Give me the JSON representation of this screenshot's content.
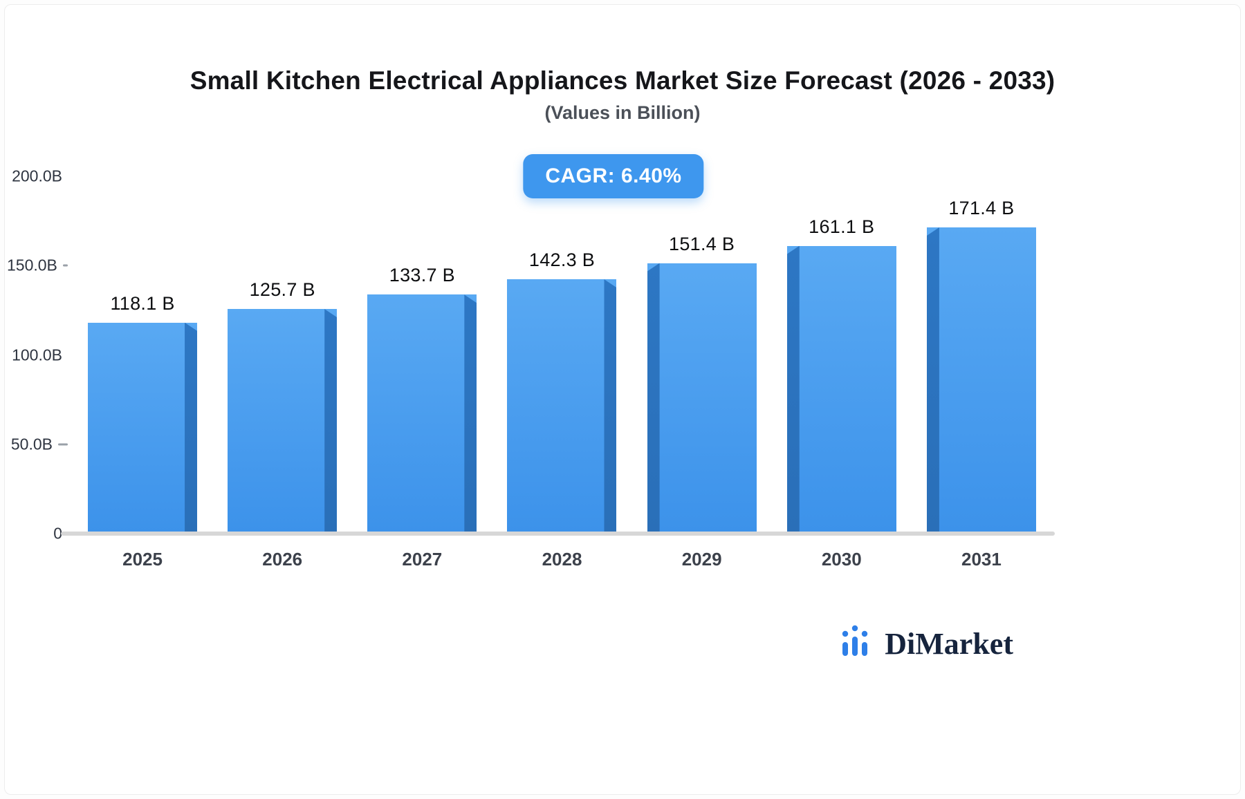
{
  "title": "Small Kitchen Electrical Appliances Market Size Forecast (2026 - 2033)",
  "subtitle": "(Values in Billion)",
  "cagr_label": "CAGR: 6.40%",
  "brand": {
    "name": "DiMarket"
  },
  "colors": {
    "bar_top": "#59a9f3",
    "bar_bottom": "#3c92ea",
    "bar_side": "#2a6fb8",
    "badge": "#3e97ee",
    "logo_icon": "#2e7fe8",
    "logo_text": "#16243d"
  },
  "chart_data": {
    "type": "bar",
    "title": "Small Kitchen Electrical Appliances Market Size Forecast (2026 - 2033)",
    "subtitle": "(Values in Billion)",
    "categories": [
      "2025",
      "2026",
      "2027",
      "2028",
      "2029",
      "2030",
      "2031"
    ],
    "values": [
      118.1,
      125.7,
      133.7,
      142.3,
      151.4,
      161.1,
      171.4
    ],
    "value_labels": [
      "118.1 B",
      "125.7 B",
      "133.7 B",
      "142.3 B",
      "151.4 B",
      "161.1 B",
      "171.4 B"
    ],
    "xlabel": "",
    "ylabel": "",
    "ylim": [
      0,
      200
    ],
    "grid": false,
    "legend": false,
    "y_ticks": [
      {
        "label": "200.0B",
        "value": 200,
        "tick": false
      },
      {
        "label": "150.0B",
        "value": 150,
        "tick": true
      },
      {
        "label": "100.0B",
        "value": 100,
        "tick": false
      },
      {
        "label": "50.0B",
        "value": 50,
        "tick": true
      },
      {
        "label": "0",
        "value": 0,
        "tick": false
      }
    ]
  }
}
